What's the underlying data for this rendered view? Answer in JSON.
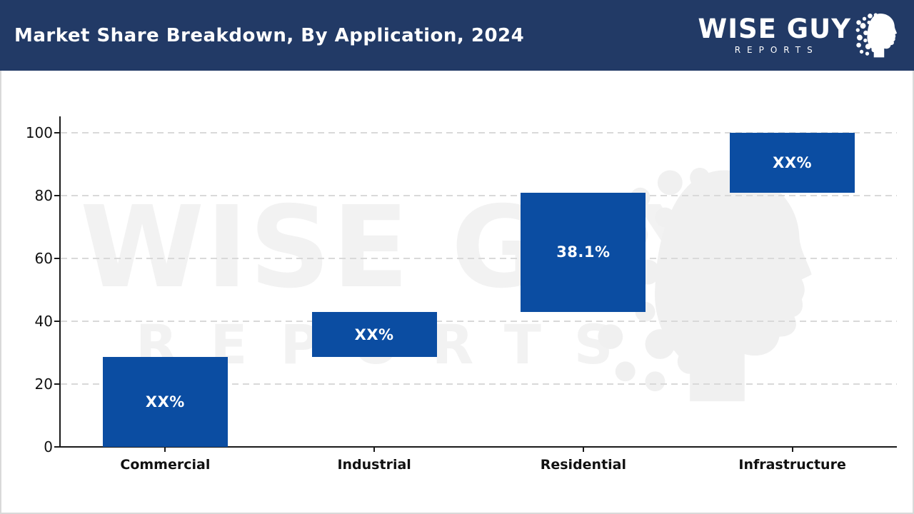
{
  "header": {
    "title": "Market Share Breakdown, By Application, 2024",
    "logo": {
      "name": "WISE GUY",
      "subtitle": "REPORTS"
    }
  },
  "icons": {
    "brand_head": "head-profile-dots"
  },
  "watermark": {
    "line1": "WISE GUY",
    "line2": "REPORTS"
  },
  "chart_data": {
    "type": "bar",
    "subtype": "waterfall",
    "title": "Market Share Breakdown, By Application, 2024",
    "xlabel": "",
    "ylabel": "",
    "categories": [
      "Commercial",
      "Industrial",
      "Residential",
      "Infrastructure"
    ],
    "segments": [
      {
        "category": "Commercial",
        "start": 0,
        "end": 28.6,
        "label": "XX%"
      },
      {
        "category": "Industrial",
        "start": 28.6,
        "end": 42.9,
        "label": "XX%"
      },
      {
        "category": "Residential",
        "start": 42.9,
        "end": 81.0,
        "label": "38.1%"
      },
      {
        "category": "Infrastructure",
        "start": 81.0,
        "end": 100,
        "label": "XX%"
      }
    ],
    "yticks": [
      0,
      20,
      40,
      60,
      80,
      100
    ],
    "ylim": [
      0,
      100
    ],
    "grid": "dashed-horizontal",
    "legend": "none",
    "bar_color": "#0b4da2",
    "bar_label_color": "#ffffff"
  },
  "colors": {
    "header_bg": "#223a66",
    "bar": "#0b4da2",
    "grid": "#d9d9d9",
    "axis": "#1a1a1a",
    "watermark": "#f2f2f2",
    "frame_border": "#d9d9d9"
  }
}
